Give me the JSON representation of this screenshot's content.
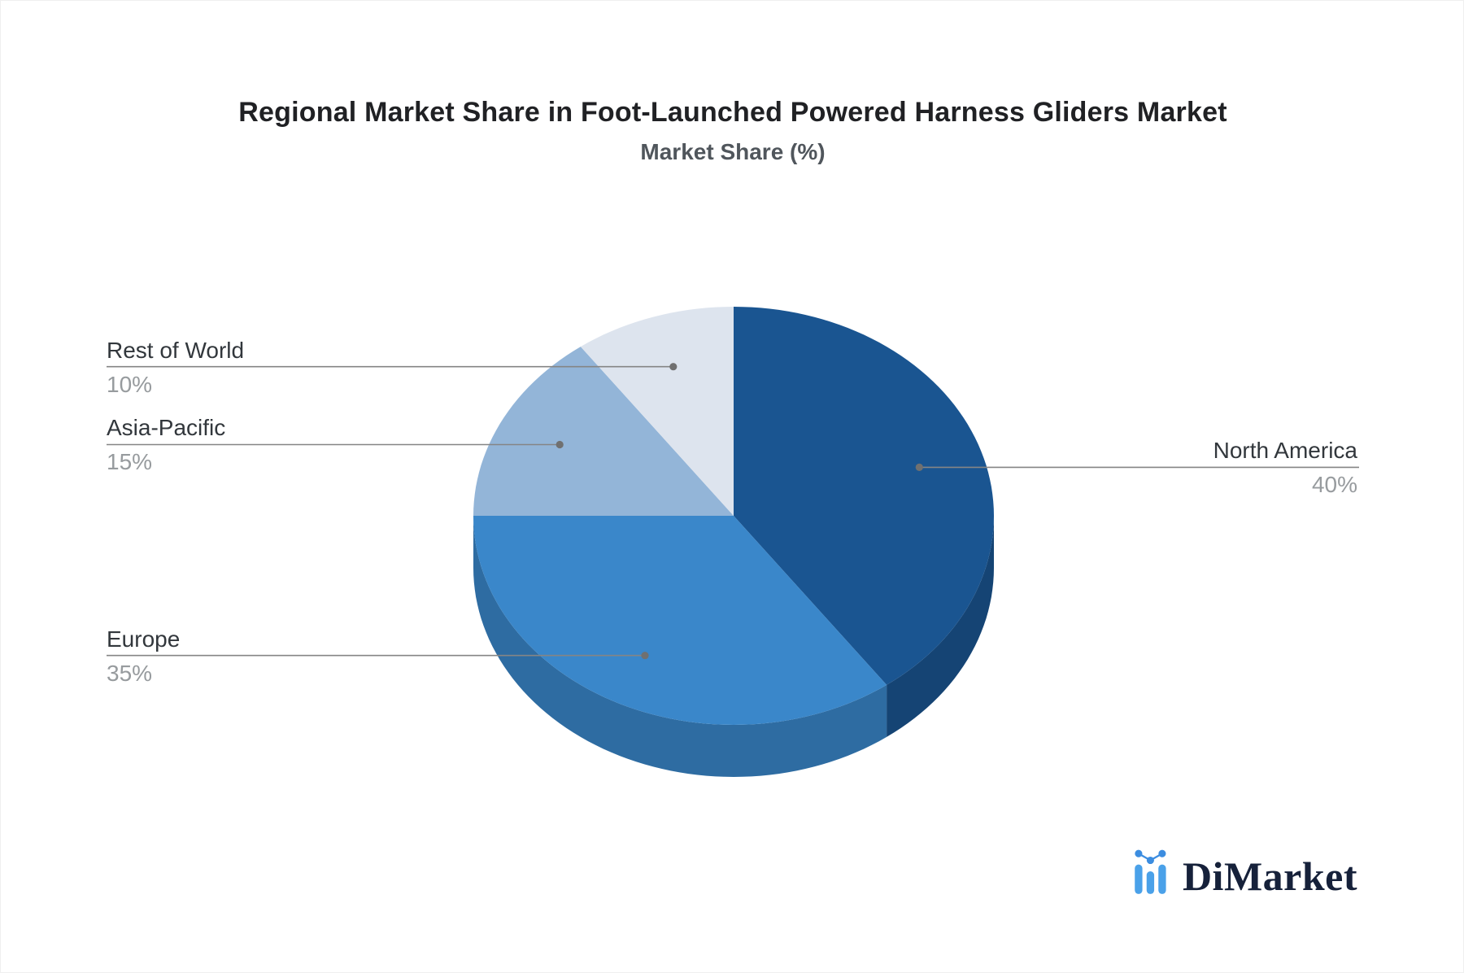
{
  "title": "Regional Market Share in Foot-Launched Powered Harness Gliders Market",
  "subtitle": "Market Share (%)",
  "chart_data": {
    "type": "pie",
    "style": "3d-extruded",
    "labels": [
      "North America",
      "Europe",
      "Asia-Pacific",
      "Rest of World"
    ],
    "values": [
      40,
      35,
      15,
      10
    ],
    "display_values": [
      "40%",
      "35%",
      "15%",
      "10%"
    ],
    "colors": [
      "#1a5591",
      "#3a87ca",
      "#93b5d8",
      "#dde4ee"
    ],
    "start_angle_deg": 0,
    "direction": "clockwise",
    "legend_position": "callout-lines",
    "callout_line_color": "#858585",
    "callout_dot_color": "#707070",
    "label_text_color": "#32373c",
    "value_text_color": "#979b9e"
  },
  "branding": {
    "logo_text": "DiMarket",
    "logo_icon": "bar-chart-icon",
    "logo_text_color": "#16213a",
    "logo_accent_color": "#4aa1e9",
    "logo_dot_color": "#3c8de0"
  }
}
